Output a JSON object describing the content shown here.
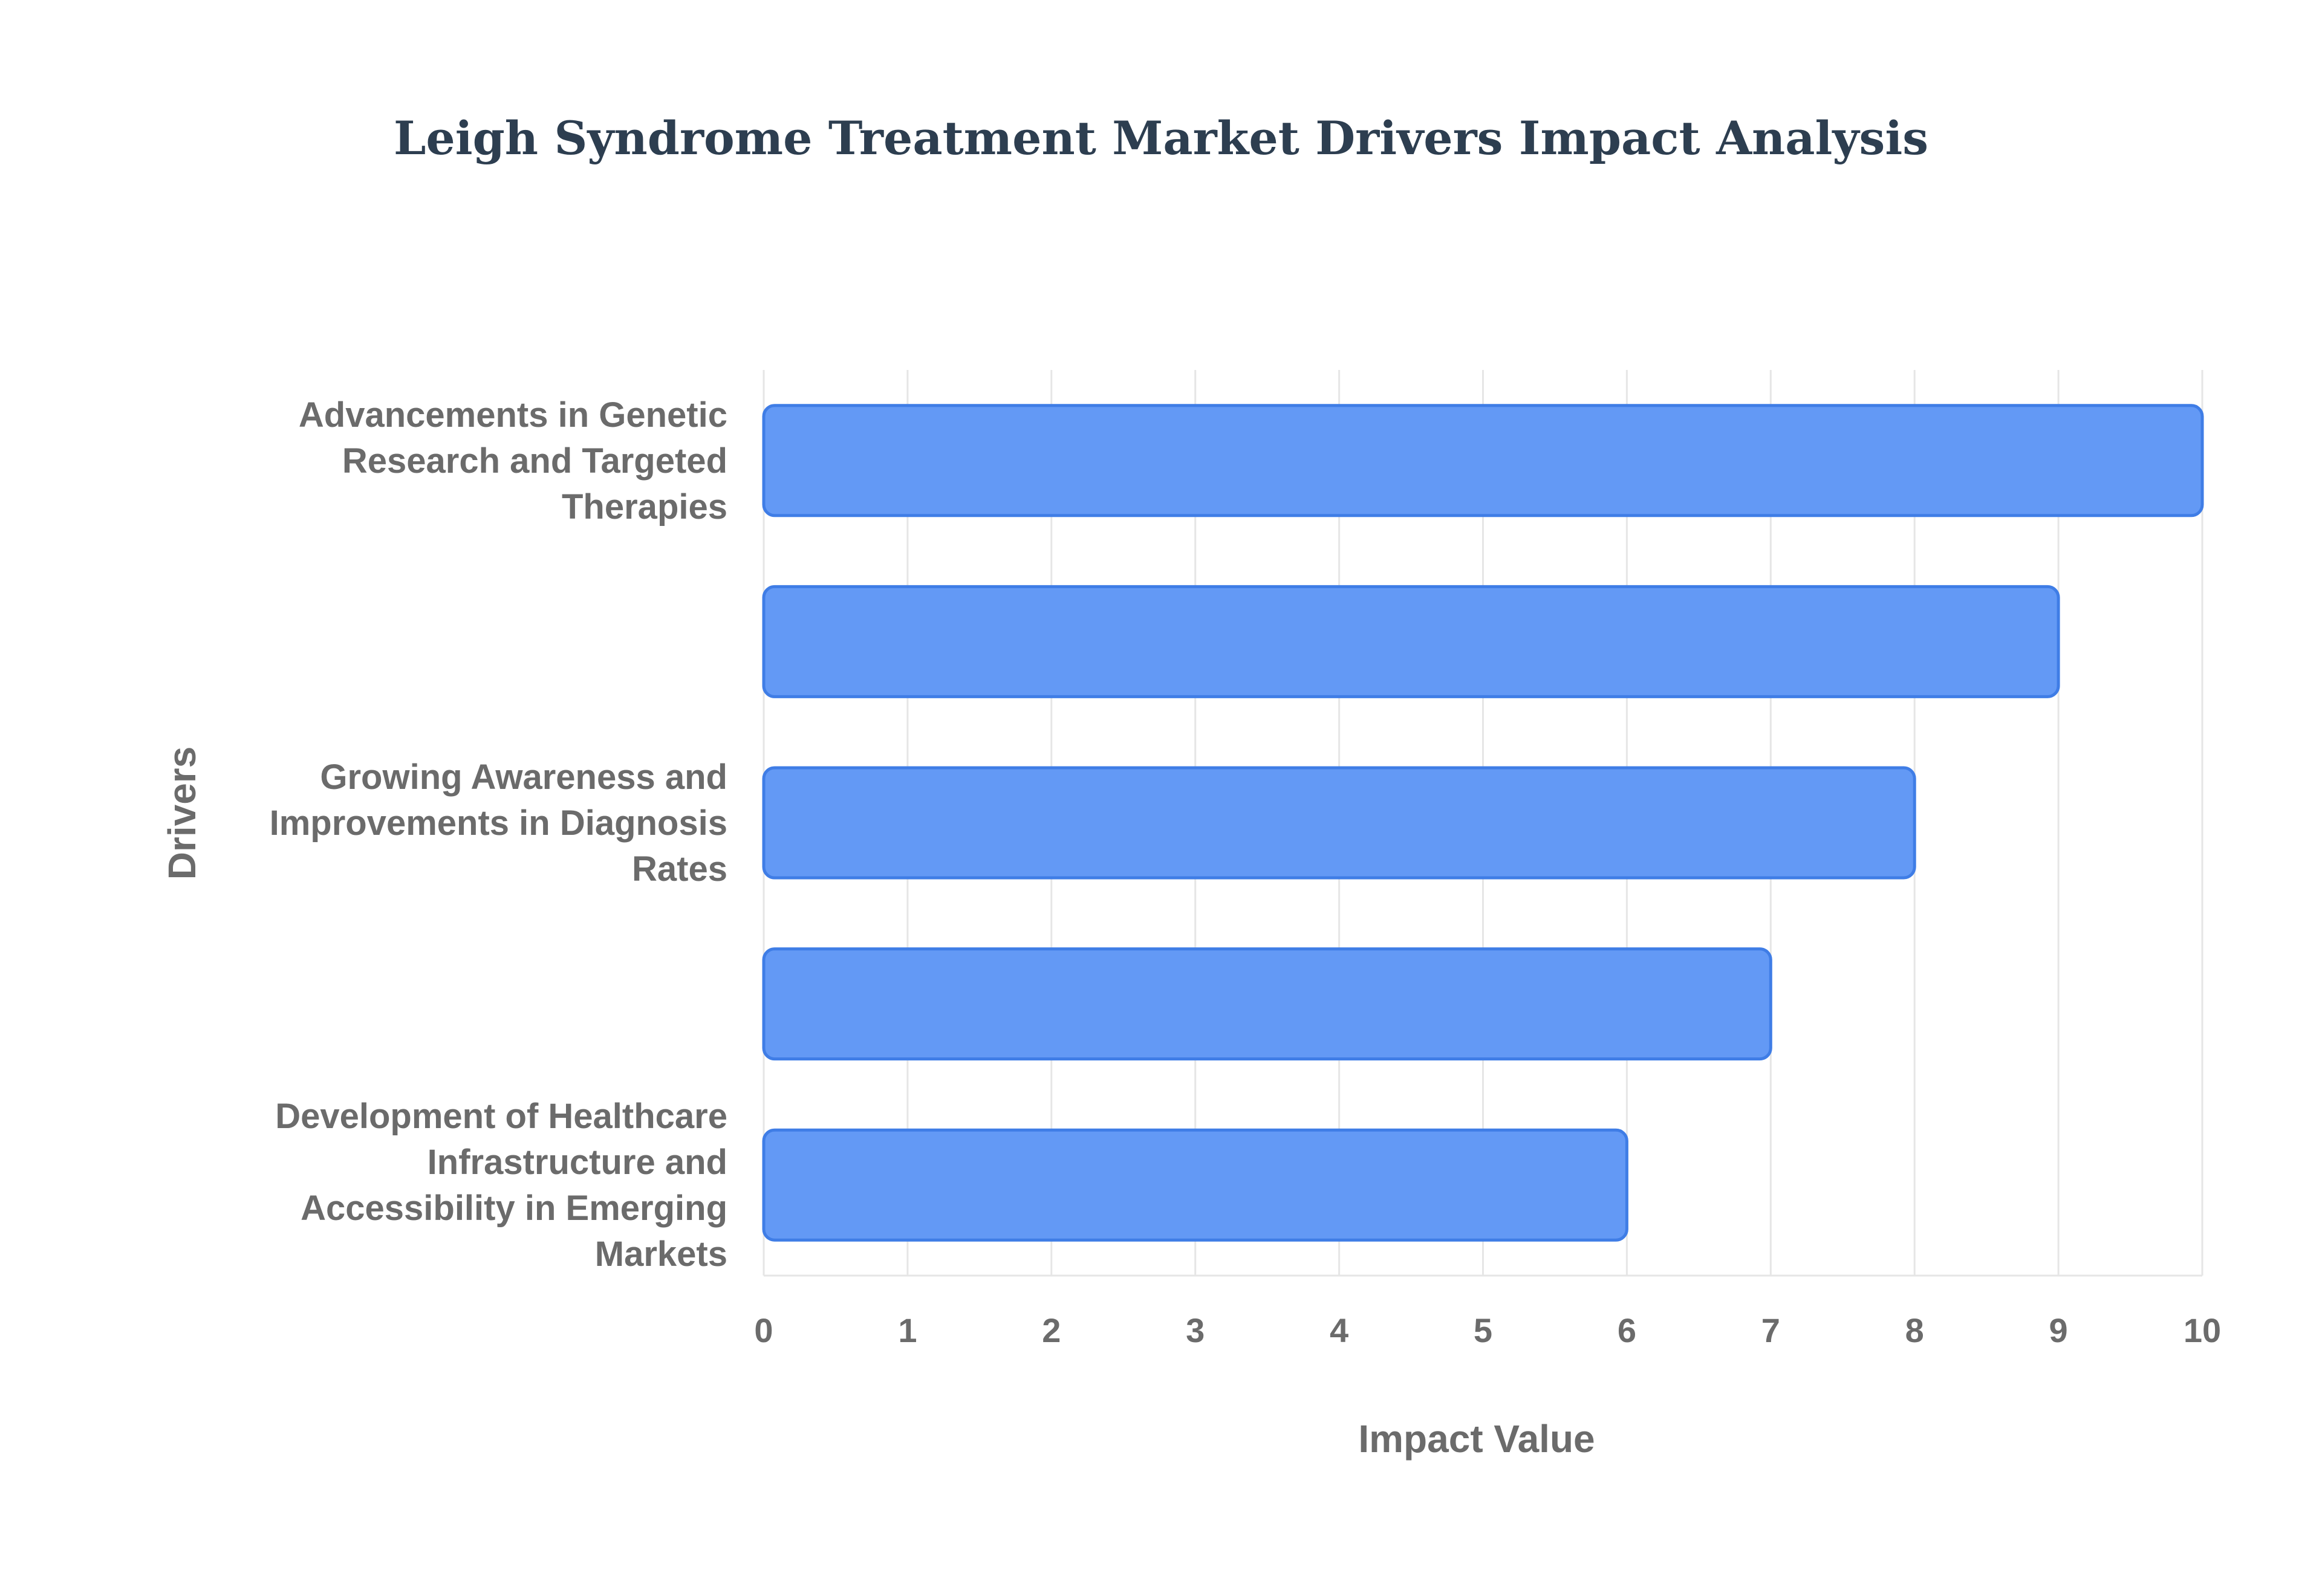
{
  "chart_data": {
    "type": "bar",
    "orientation": "horizontal",
    "title": "Leigh Syndrome Treatment Market Drivers Impact Analysis",
    "xlabel": "Impact Value",
    "ylabel": "Drivers",
    "xlim": [
      0,
      10
    ],
    "xticks": [
      0,
      1,
      2,
      3,
      4,
      5,
      6,
      7,
      8,
      9,
      10
    ],
    "categories": [
      "Advancements in Genetic Research and Targeted Therapies",
      "",
      "Growing Awareness and Improvements in Diagnosis Rates",
      "",
      "Development of Healthcare Infrastructure and Accessibility in Emerging Markets"
    ],
    "values": [
      10,
      9,
      8,
      7,
      6
    ],
    "grid": true,
    "legend": "none",
    "colors": {
      "bar_fill": "#6399f5",
      "bar_stroke": "#3f7de6",
      "grid": "#e6e6e6",
      "title": "#2d3e50",
      "text": "#6b6b6b"
    }
  }
}
